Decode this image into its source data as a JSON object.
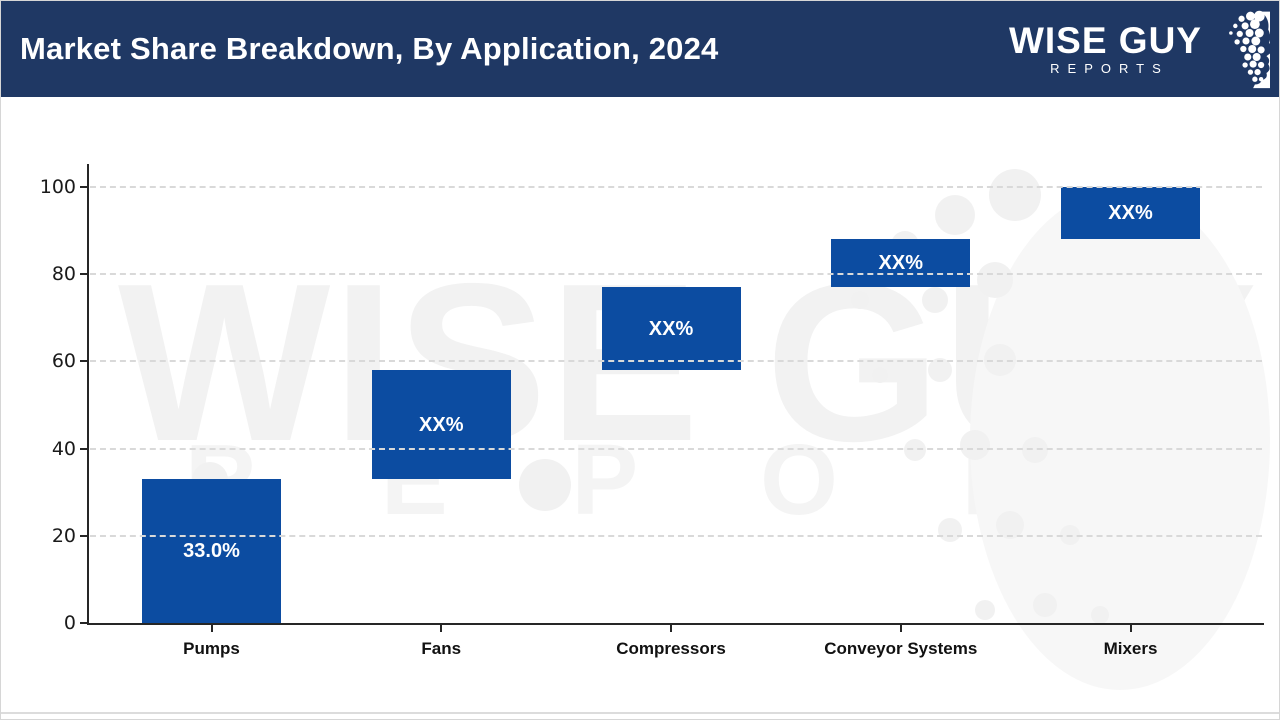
{
  "header": {
    "title": "Market Share Breakdown, By Application, 2024",
    "logo": {
      "line1": "WISE GUY",
      "line2": "REPORTS"
    }
  },
  "watermark": {
    "line1": "WISE GUY",
    "line2": "REPORTS"
  },
  "colors": {
    "header_bg": "#1f3864",
    "bar": "#0c4ca1",
    "axis": "#262626",
    "gridline": "#d9d9d9",
    "bar_label": "#ffffff",
    "watermark": "#f2f2f2"
  },
  "chart_data": {
    "type": "bar",
    "subtype": "waterfall",
    "title": "Market Share Breakdown, By Application, 2024",
    "categories": [
      "Pumps",
      "Fans",
      "Compressors",
      "Conveyor Systems",
      "Mixers"
    ],
    "segments": [
      [
        0,
        33
      ],
      [
        33,
        58
      ],
      [
        58,
        77
      ],
      [
        77,
        88
      ],
      [
        88,
        100
      ]
    ],
    "segment_sizes_pct": [
      33,
      25,
      19,
      11,
      12
    ],
    "bar_labels": [
      "33.0%",
      "XX%",
      "XX%",
      "XX%",
      "XX%"
    ],
    "xlabel": "",
    "ylabel": "",
    "ylim": [
      0,
      100
    ],
    "yticks": [
      0,
      20,
      40,
      60,
      80,
      100
    ],
    "grid": "horizontal-dashed",
    "grid_over_bars": true,
    "legend": "none"
  }
}
